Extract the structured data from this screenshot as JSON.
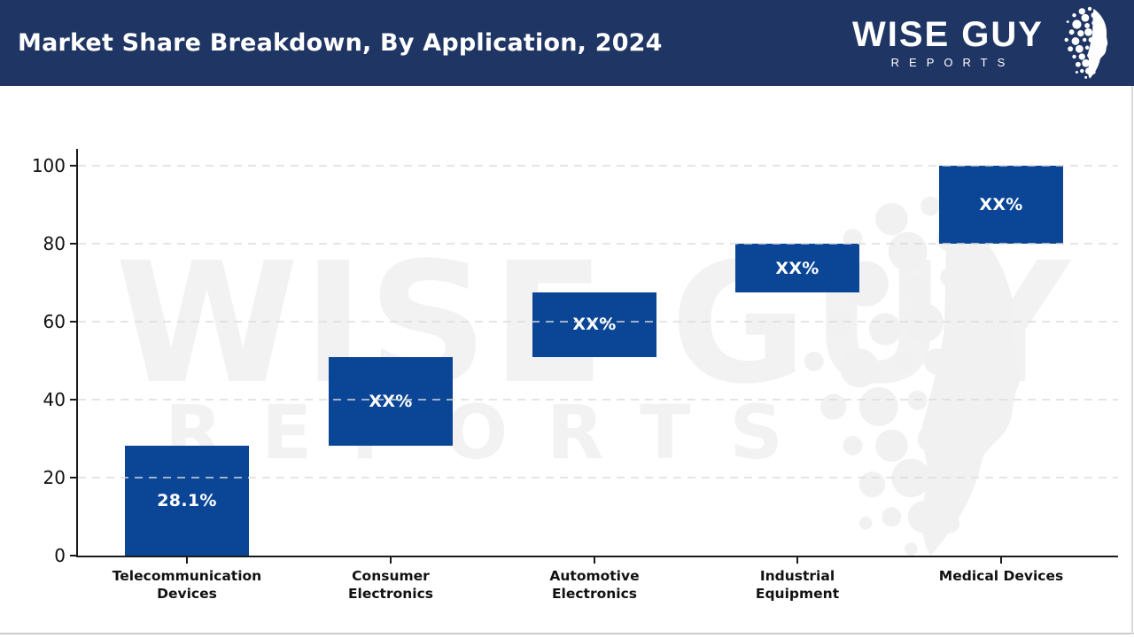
{
  "header": {
    "title": "Market Share Breakdown, By Application, 2024",
    "bg_color": "#1f3563",
    "logo": {
      "wordmark": "WISE GUY",
      "subtext": "REPORTS"
    }
  },
  "watermark": {
    "line1": "WISE GUY",
    "line2": "REPORTS"
  },
  "chart_data": {
    "type": "bar",
    "subtype": "waterfall",
    "title": "Market Share Breakdown, By Application, 2024",
    "categories": [
      "Telecommunication Devices",
      "Consumer Electronics",
      "Automotive Electronics",
      "Industrial Equipment",
      "Medical Devices"
    ],
    "category_lines": [
      [
        "Telecommunication",
        "Devices"
      ],
      [
        "Consumer",
        "Electronics"
      ],
      [
        "Automotive",
        "Electronics"
      ],
      [
        "Industrial",
        "Equipment"
      ],
      [
        "Medical Devices"
      ]
    ],
    "segments": [
      {
        "start": 0,
        "end": 28.1,
        "label": "28.1%"
      },
      {
        "start": 28.1,
        "end": 51,
        "label": "XX%"
      },
      {
        "start": 51,
        "end": 67.5,
        "label": "XX%"
      },
      {
        "start": 67.5,
        "end": 80,
        "label": "XX%"
      },
      {
        "start": 80,
        "end": 100,
        "label": "XX%"
      }
    ],
    "xlabel": "",
    "ylabel": "",
    "ylim": [
      0,
      105
    ],
    "yticks": [
      0,
      20,
      40,
      60,
      80,
      100
    ],
    "bar_color": "#0a4596",
    "label_color": "#ffffff",
    "grid": {
      "axis": "y",
      "style": "dashed",
      "color": "#dddddd",
      "drawn_over_bars": true
    },
    "legend": "none"
  }
}
